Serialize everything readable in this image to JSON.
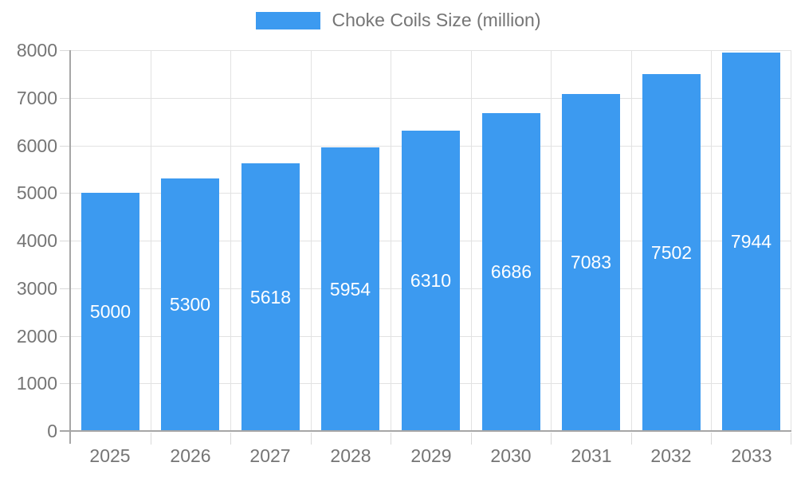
{
  "chart_data": {
    "type": "bar",
    "title": "Choke Coils Size (million)",
    "legend": {
      "position": "top",
      "label": "Choke Coils Size (million)"
    },
    "categories": [
      "2025",
      "2026",
      "2027",
      "2028",
      "2029",
      "2030",
      "2031",
      "2032",
      "2033"
    ],
    "values": [
      5000,
      5300,
      5618,
      5954,
      6310,
      6686,
      7083,
      7502,
      7944
    ],
    "value_labels_shown": true,
    "xlabel": "",
    "ylabel": "",
    "ylim": [
      0,
      8000
    ],
    "ytick_step": 1000,
    "ytick_labels": [
      "0",
      "1000",
      "2000",
      "3000",
      "4000",
      "5000",
      "6000",
      "7000",
      "8000"
    ],
    "grid": true,
    "colors": {
      "bar": "#3c9af0",
      "value_label": "#ffffff",
      "axis_text": "#757575",
      "axis_line": "#a6a6a6",
      "gridline": "#e2e2e2",
      "tick": "#d9d9d9",
      "background": "#ffffff"
    }
  }
}
